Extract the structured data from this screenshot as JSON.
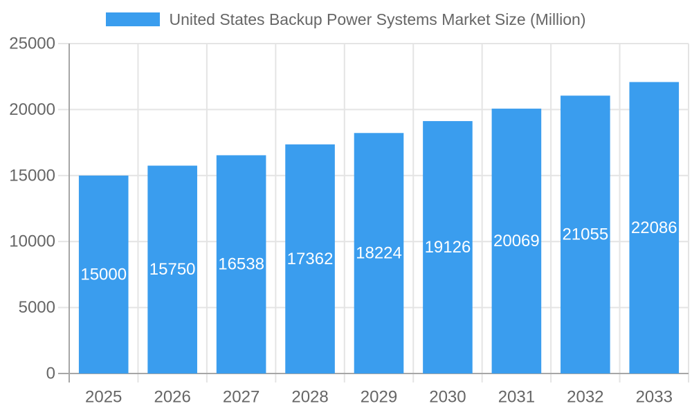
{
  "chart_data": {
    "type": "bar",
    "title": "United States Backup Power Systems Market Size (Million)",
    "categories": [
      "2025",
      "2026",
      "2027",
      "2028",
      "2029",
      "2030",
      "2031",
      "2032",
      "2033"
    ],
    "values": [
      15000,
      15750,
      16538,
      17362,
      18224,
      19126,
      20069,
      21055,
      22086
    ],
    "series": [
      {
        "name": "United States Backup Power Systems Market Size (Million)",
        "values": [
          15000,
          15750,
          16538,
          17362,
          18224,
          19126,
          20069,
          21055,
          22086
        ]
      }
    ],
    "xlabel": "",
    "ylabel": "",
    "ylim": [
      0,
      25000
    ],
    "ytick_step": 5000,
    "ytick_labels": [
      "0",
      "5000",
      "10000",
      "15000",
      "20000",
      "25000"
    ],
    "grid": "both",
    "legend_position": "top",
    "value_labels": "centered-inside-bars",
    "colors": {
      "bar": "#3A9DEE",
      "value_label": "#FFFFFF",
      "tick_label": "#666666",
      "legend_label": "#666666",
      "gridline": "#E4E4E4",
      "axis_line": "#A6A6A6",
      "background": "#FFFFFF"
    }
  }
}
